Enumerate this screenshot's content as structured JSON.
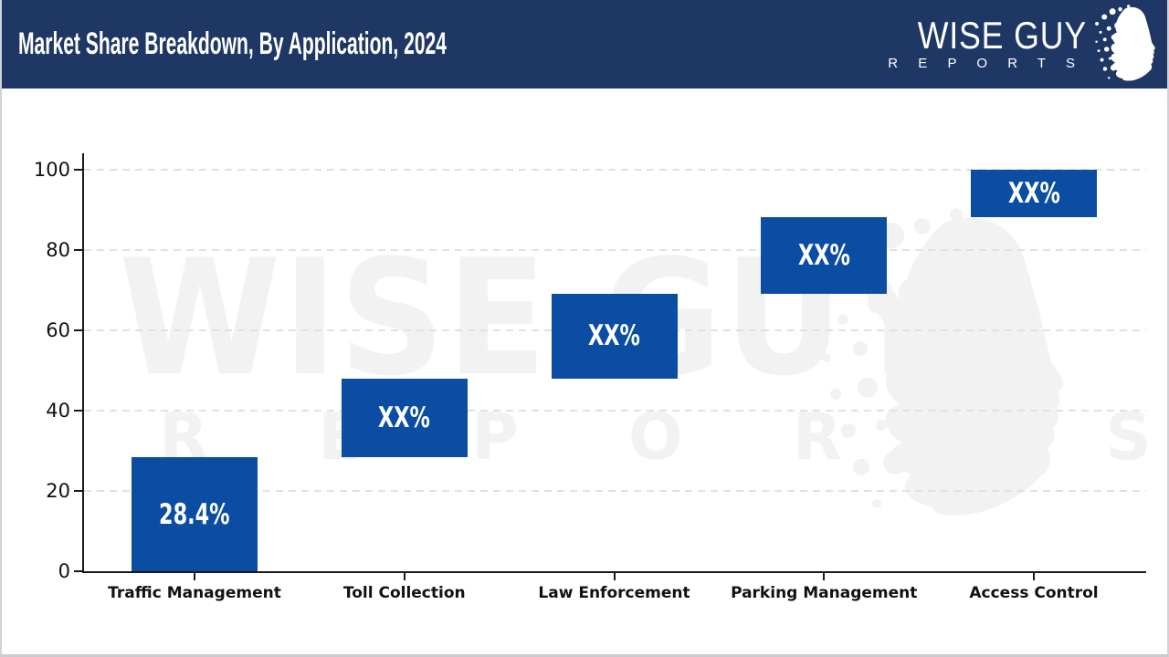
{
  "header": {
    "title": "Market Share Breakdown, By Application, 2024",
    "logo": {
      "primary": "WISE GUY",
      "secondary": "R E P O R T S"
    }
  },
  "watermark": {
    "primary": "WISE GUY",
    "secondary": "R E P O R T S"
  },
  "colors": {
    "header_bg": "#1f3765",
    "bar": "#0b4da2",
    "bar_label": "#ffffff",
    "axis": "#1a1a1a",
    "gridline": "#dfe1e3",
    "watermark": "#f2f2f2"
  },
  "chart_data": {
    "type": "bar",
    "subtype": "waterfall",
    "title": "Market Share Breakdown, By Application, 2024",
    "categories": [
      "Traffic Management",
      "Toll Collection",
      "Law Enforcement",
      "Parking Management",
      "Access Control"
    ],
    "segments": [
      {
        "category": "Traffic Management",
        "start": 0,
        "end": 28.4,
        "label": "28.4%"
      },
      {
        "category": "Toll Collection",
        "start": 28.4,
        "end": 48.0,
        "label": "XX%"
      },
      {
        "category": "Law Enforcement",
        "start": 48.0,
        "end": 69.2,
        "label": "XX%"
      },
      {
        "category": "Parking Management",
        "start": 69.2,
        "end": 88.2,
        "label": "XX%"
      },
      {
        "category": "Access Control",
        "start": 88.2,
        "end": 100.0,
        "label": "XX%"
      }
    ],
    "yticks": [
      0,
      20,
      40,
      60,
      80,
      100
    ],
    "ylim": [
      0,
      105
    ],
    "xlabel": "",
    "ylabel": "",
    "grid": "horizontal-dashed",
    "legend": "none"
  }
}
